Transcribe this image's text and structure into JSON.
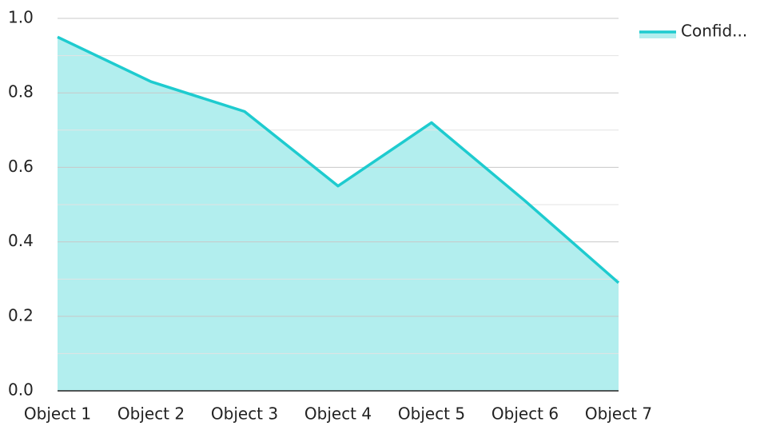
{
  "chart_data": {
    "type": "area",
    "categories": [
      "Object 1",
      "Object 2",
      "Object 3",
      "Object 4",
      "Object 5",
      "Object 6",
      "Object 7"
    ],
    "series": [
      {
        "name": "Confid...",
        "color": "#1ecbcf",
        "fill": "#b2eeee",
        "values": [
          0.95,
          0.83,
          0.75,
          0.55,
          0.72,
          0.51,
          0.29
        ]
      }
    ],
    "ylim": [
      0,
      1
    ],
    "yticks": [
      {
        "value": 0,
        "label": "0.0"
      },
      0.2,
      0.4,
      0.6,
      0.8,
      {
        "value": 1,
        "label": "1.0"
      }
    ],
    "minor_yticks": [
      0.1,
      0.3,
      0.5,
      0.7,
      0.9
    ],
    "grid": true,
    "legend": "top-right"
  }
}
